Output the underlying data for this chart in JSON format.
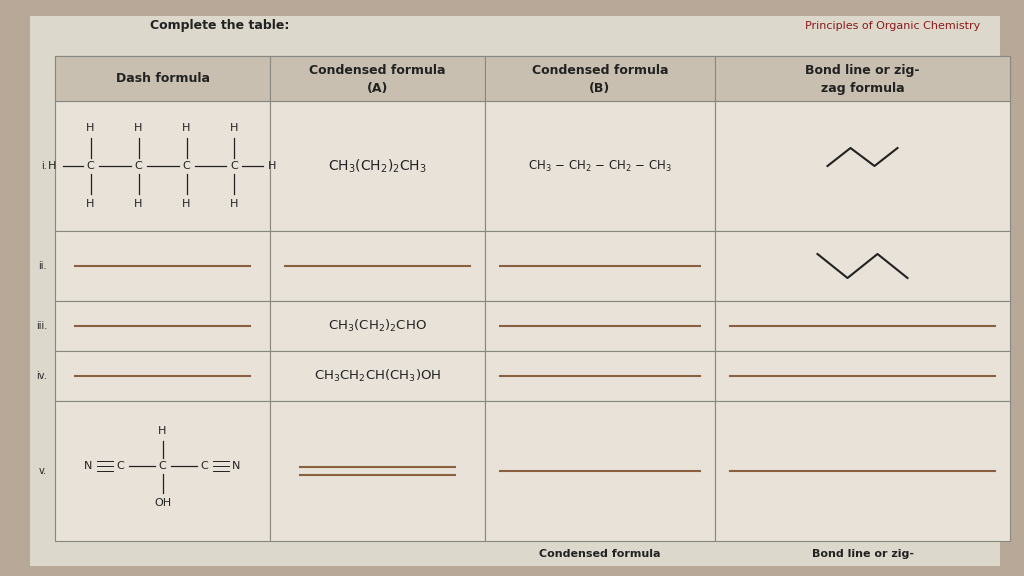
{
  "title": "Complete the table:",
  "header_row": [
    "Dash formula",
    "Condensed formula\n(A)",
    "Condensed formula\n(B)",
    "Bond line or zig-\nzag formula"
  ],
  "background_color": "#d6cfc4",
  "table_bg": "#e8e2d8",
  "header_bg": "#c8bfb0",
  "border_color": "#888880",
  "text_color": "#222222",
  "red_text_color": "#8b1a1a",
  "dash_line_color": "#8b6040",
  "page_bg": "#b8a898"
}
